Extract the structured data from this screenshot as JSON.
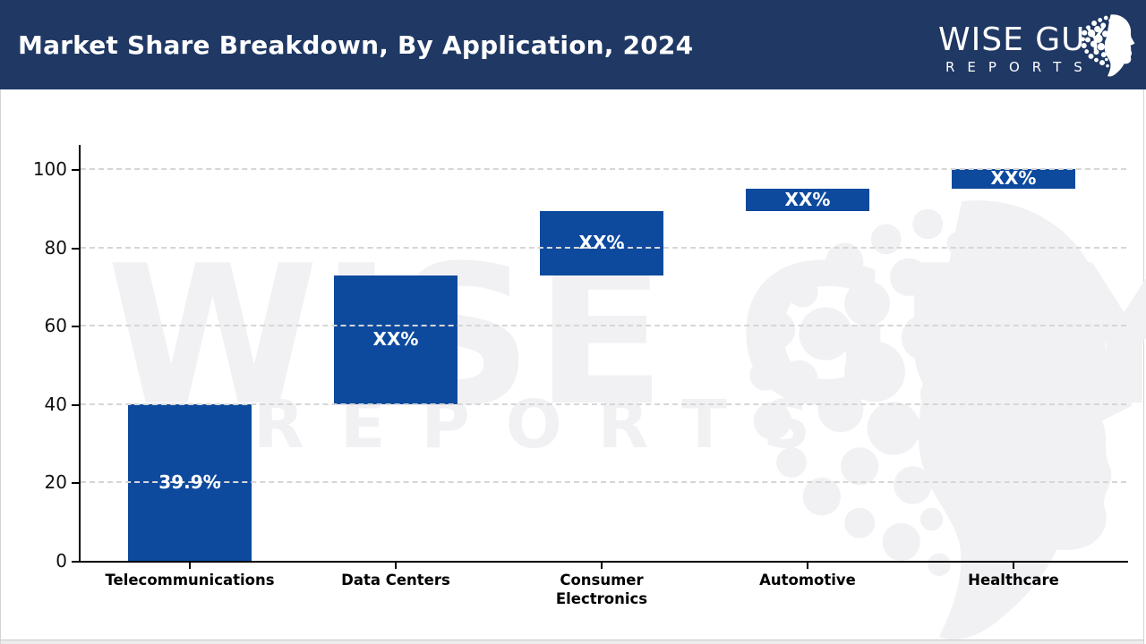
{
  "header": {
    "title": "Market Share Breakdown, By Application, 2024",
    "logo": {
      "line1": "WISE GUY",
      "line2": "REPORTS"
    }
  },
  "watermark": {
    "line1": "WISE GUY",
    "line2": "REPORTS"
  },
  "colors": {
    "header_bg": "#1f3864",
    "header_text": "#ffffff",
    "bar": "#0d4a9e",
    "bar_label": "#ffffff",
    "grid": "#d6d6d6",
    "axis": "#000000",
    "tick_label": "#111111",
    "watermark": "#f1f1f4"
  },
  "chart_data": {
    "type": "bar",
    "subtype": "waterfall",
    "title": "Market Share Breakdown, By Application, 2024",
    "categories": [
      "Telecommunications",
      "Data Centers",
      "Consumer Electronics",
      "Automotive",
      "Healthcare"
    ],
    "segments": [
      {
        "category": "Telecommunications",
        "start": 0,
        "end": 39.9,
        "label": "39.9%"
      },
      {
        "category": "Data Centers",
        "start": 39.9,
        "end": 72.9,
        "label": "XX%"
      },
      {
        "category": "Consumer Electronics",
        "start": 72.9,
        "end": 89.2,
        "label": "XX%"
      },
      {
        "category": "Automotive",
        "start": 89.2,
        "end": 95.0,
        "label": "XX%"
      },
      {
        "category": "Healthcare",
        "start": 95.0,
        "end": 100.0,
        "label": "XX%"
      }
    ],
    "values": [
      39.9,
      33.0,
      16.3,
      5.8,
      5.0
    ],
    "displayed_labels": [
      "39.9%",
      "XX%",
      "XX%",
      "XX%",
      "XX%"
    ],
    "xlabel": "",
    "ylabel": "",
    "ylim": [
      0,
      100
    ],
    "yticks": [
      0,
      20,
      40,
      60,
      80,
      100
    ],
    "grid": "horizontal-dashed-over-bars",
    "legend": "none"
  }
}
